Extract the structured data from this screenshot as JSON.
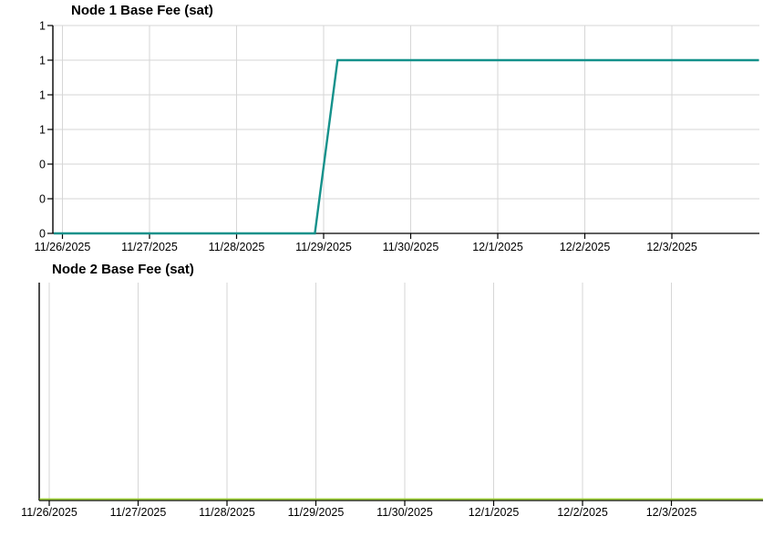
{
  "page": {
    "background": "#ffffff"
  },
  "colors": {
    "axis": "#000000",
    "gridline": "#d6d6d6",
    "tick_text": "#000000",
    "node1_line": "#14918b",
    "node2_line": "#9acd32"
  },
  "chart_data": [
    {
      "type": "line",
      "title": "Node 1 Base Fee (sat)",
      "xlabel": "",
      "ylabel": "",
      "ylim": [
        0,
        1.2
      ],
      "y_ticks": [
        {
          "value": 1.2,
          "label": "1"
        },
        {
          "value": 1.0,
          "label": "1"
        },
        {
          "value": 0.8,
          "label": "1"
        },
        {
          "value": 0.6,
          "label": "1"
        },
        {
          "value": 0.4,
          "label": "0"
        },
        {
          "value": 0.2,
          "label": "0"
        },
        {
          "value": 0.0,
          "label": "0"
        }
      ],
      "x_tick_labels": [
        "11/26/2025",
        "11/27/2025",
        "11/28/2025",
        "11/29/2025",
        "11/30/2025",
        "12/1/2025",
        "12/2/2025",
        "12/3/2025"
      ],
      "x_unit": "days since 11/26/2025 00:00",
      "xlim": [
        -0.1,
        8.0
      ],
      "grid": {
        "horizontal": true,
        "vertical": true
      },
      "legend": "none",
      "series": [
        {
          "name": "Node 1 base fee",
          "color": "#14918b",
          "points": [
            [
              -0.1,
              0
            ],
            [
              2.9,
              0
            ],
            [
              3.16,
              1
            ],
            [
              8.0,
              1
            ]
          ],
          "description": "0 sat from start until late 11/28, rises to 1 sat early 11/29, then constant at 1 sat through the end"
        }
      ]
    },
    {
      "type": "line",
      "title": "Node 2 Base Fee (sat)",
      "xlabel": "",
      "ylabel": "",
      "ylim": null,
      "y_ticks": [],
      "x_tick_labels": [
        "11/26/2025",
        "11/27/2025",
        "11/28/2025",
        "11/29/2025",
        "11/30/2025",
        "12/1/2025",
        "12/2/2025",
        "12/3/2025"
      ],
      "x_unit": "days since 11/26/2025 00:00",
      "xlim": [
        -0.11,
        8.03
      ],
      "grid": {
        "horizontal": false,
        "vertical": true
      },
      "legend": "none",
      "series": [
        {
          "name": "Node 2 base fee",
          "color": "#9acd32",
          "points": [
            [
              -0.11,
              0
            ],
            [
              8.03,
              0
            ]
          ],
          "description": "constant 0 sat for the entire period"
        }
      ]
    }
  ]
}
